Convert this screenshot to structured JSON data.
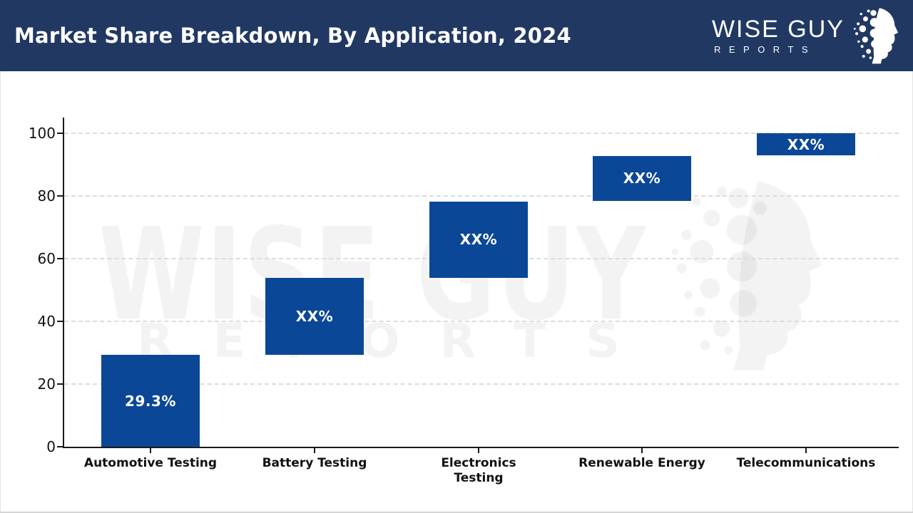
{
  "chart_data": {
    "type": "bar",
    "subtype": "waterfall",
    "title": "Market Share Breakdown, By Application, 2024",
    "categories": [
      "Automotive Testing",
      "Battery Testing",
      "Electronics\nTesting",
      "Renewable Energy",
      "Telecommunications"
    ],
    "segments": [
      {
        "category": "Automotive Testing",
        "start": 0,
        "end": 29.3,
        "label": "29.3%"
      },
      {
        "category": "Battery Testing",
        "start": 29.3,
        "end": 53.8,
        "label": "XX%"
      },
      {
        "category": "Electronics Testing",
        "start": 53.9,
        "end": 78.2,
        "label": "XX%"
      },
      {
        "category": "Renewable Energy",
        "start": 78.5,
        "end": 92.7,
        "label": "XX%"
      },
      {
        "category": "Telecommunications",
        "start": 92.9,
        "end": 100,
        "label": "XX%"
      }
    ],
    "y_ticks": [
      0,
      20,
      40,
      60,
      80,
      100
    ],
    "ylim": [
      0,
      105
    ],
    "xlabel": "",
    "ylabel": "",
    "grid": "horizontal-dashed",
    "legend": "none",
    "bar_color": "#0b4797"
  },
  "header": {
    "logo_line1": "WISE GUY",
    "logo_line2": "REPORTS"
  },
  "watermark": {
    "line1": "WISE GUY",
    "line2": "REPORTS"
  },
  "colors": {
    "header_bg": "#213863",
    "bar": "#0b4797",
    "axis": "#1a1a1a",
    "grid": "#dcdcdc",
    "title_text": "#ffffff",
    "value_label_text": "#ffffff"
  }
}
